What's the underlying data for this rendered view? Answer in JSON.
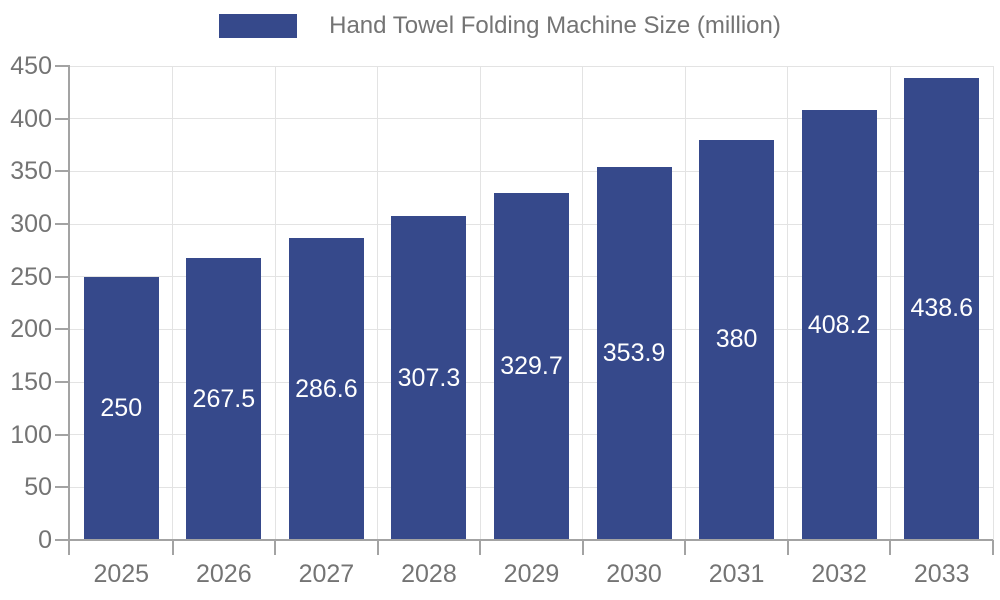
{
  "chart_data": {
    "type": "bar",
    "title": "Hand Towel Folding Machine Size (million)",
    "categories": [
      "2025",
      "2026",
      "2027",
      "2028",
      "2029",
      "2030",
      "2031",
      "2032",
      "2033"
    ],
    "values": [
      250,
      267.5,
      286.6,
      307.3,
      329.7,
      353.9,
      380,
      408.2,
      438.6
    ],
    "value_labels": [
      "250",
      "267.5",
      "286.6",
      "307.3",
      "329.7",
      "353.9",
      "380",
      "408.2",
      "438.6"
    ],
    "xlabel": "",
    "ylabel": "",
    "ylim": [
      0,
      450
    ],
    "yticks": [
      0,
      50,
      100,
      150,
      200,
      250,
      300,
      350,
      400,
      450
    ],
    "grid": true,
    "legend_position": "top",
    "colors": {
      "bar": "#36498b",
      "grid": "#e3e3e3",
      "axis": "#a3a3a3",
      "tick_label": "#747474",
      "value_label": "#ffffff",
      "legend_text": "#747474"
    }
  }
}
